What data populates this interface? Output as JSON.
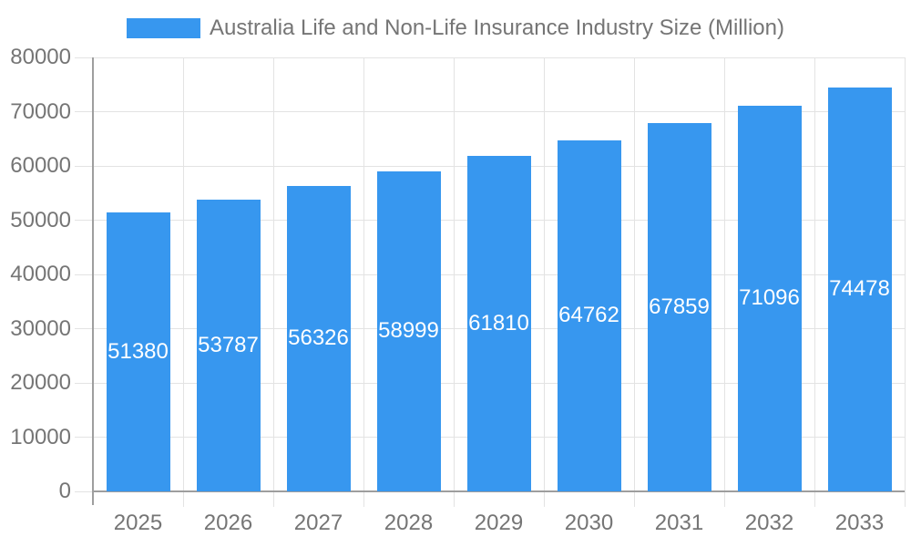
{
  "legend": {
    "series_label": "Australia Life and Non-Life Insurance Industry Size (Million)"
  },
  "colors": {
    "bar": "#3797EF",
    "gridline": "#E3E3E3",
    "axis": "#9E9E9E",
    "tick_text": "#757575",
    "bar_label_text": "#FFFFFF",
    "background": "#FFFFFF"
  },
  "chart_data": {
    "type": "bar",
    "title": "Australia Life and Non-Life Insurance Industry Size (Million)",
    "categories": [
      "2025",
      "2026",
      "2027",
      "2028",
      "2029",
      "2030",
      "2031",
      "2032",
      "2033"
    ],
    "values": [
      51380,
      53787,
      56326,
      58999,
      61810,
      64762,
      67859,
      71096,
      74478
    ],
    "xlabel": "",
    "ylabel": "",
    "ylim": [
      0,
      80000
    ],
    "ytick_step": 10000,
    "y_tick_labels": [
      "0",
      "10000",
      "20000",
      "30000",
      "40000",
      "50000",
      "60000",
      "70000",
      "80000"
    ],
    "grid": true,
    "legend_position": "top",
    "value_labels": "inside-center"
  }
}
